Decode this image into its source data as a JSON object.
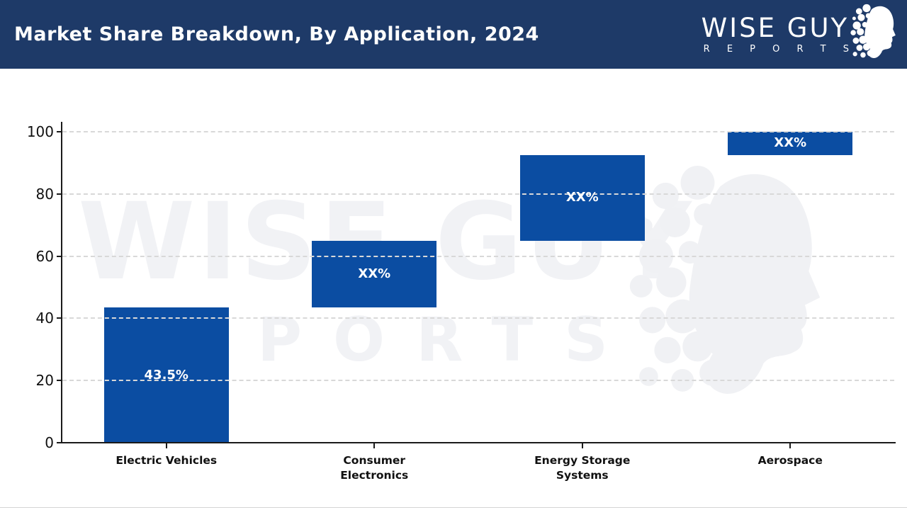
{
  "header": {
    "title": "Market Share Breakdown, By Application, 2024",
    "logo": {
      "line1": "WISE GUY",
      "line2": "R E P O R T S"
    }
  },
  "watermark": {
    "line1": "WISE GUY",
    "line2": "REPORTS"
  },
  "chart_data": {
    "type": "bar",
    "subtype": "waterfall",
    "title": "Market Share Breakdown, By Application, 2024",
    "categories": [
      [
        "Electric Vehicles"
      ],
      [
        "Consumer",
        "Electronics"
      ],
      [
        "Energy Storage",
        "Systems"
      ],
      [
        "Aerospace"
      ]
    ],
    "bars": [
      {
        "category": "Electric Vehicles",
        "start": 0,
        "end": 43.5,
        "label": "43.5%"
      },
      {
        "category": "Consumer Electronics",
        "start": 43.5,
        "end": 65,
        "label": "XX%"
      },
      {
        "category": "Energy Storage Systems",
        "start": 65,
        "end": 92.5,
        "label": "XX%"
      },
      {
        "category": "Aerospace",
        "start": 92.5,
        "end": 100,
        "label": "XX%"
      }
    ],
    "xlabel": "",
    "ylabel": "",
    "ylim": [
      0,
      100
    ],
    "yticks": [
      0,
      20,
      40,
      60,
      80,
      100
    ],
    "grid": true,
    "legend": "none",
    "gridline_color": "#d8d8d8",
    "bar_color": "#0b4da2",
    "header_color": "#1e3a68",
    "bar_label_color": "#ffffff"
  }
}
